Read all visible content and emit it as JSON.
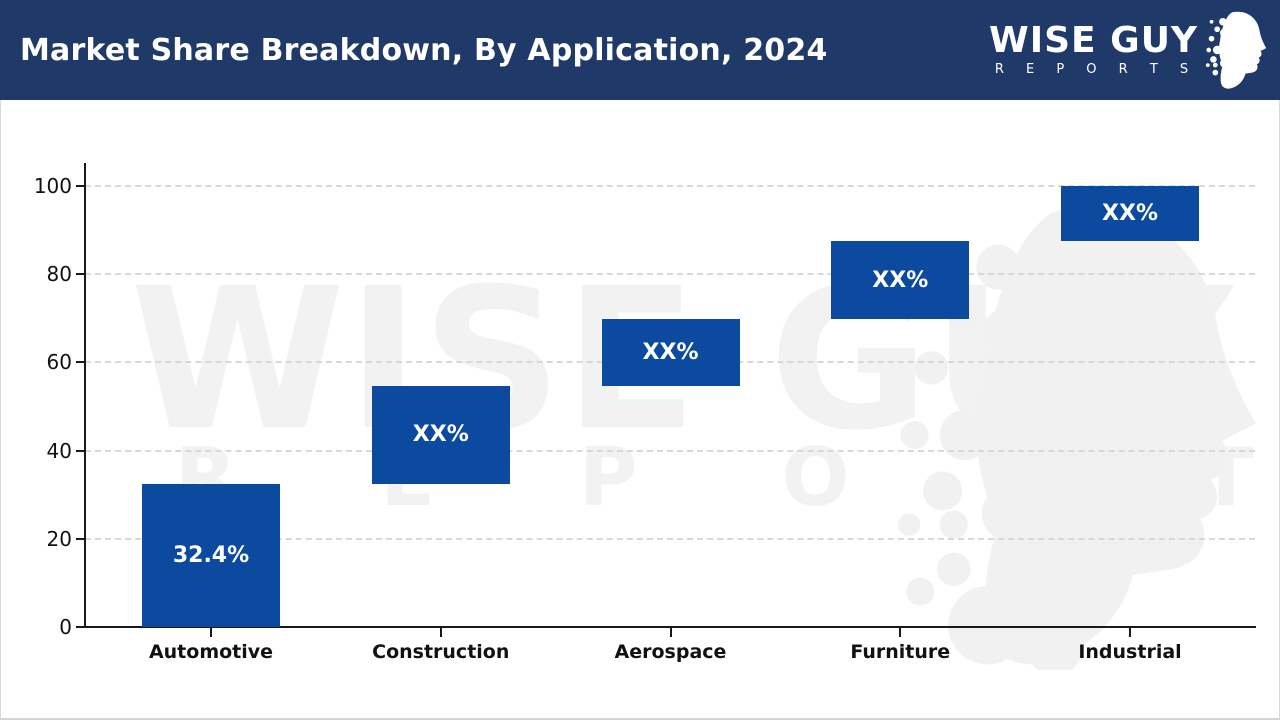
{
  "header": {
    "title": "Market Share Breakdown, By Application, 2024",
    "logo": {
      "name": "WISE GUY",
      "subtitle": "R E P O R T S"
    }
  },
  "watermark": {
    "line1": "WISE GUY",
    "line2": "R E P O R T S"
  },
  "chart_data": {
    "type": "bar",
    "subtype": "waterfall",
    "title": "Market Share Breakdown, By Application, 2024",
    "categories": [
      "Automotive",
      "Construction",
      "Aerospace",
      "Furniture",
      "Industrial"
    ],
    "segments": [
      {
        "category": "Automotive",
        "start": 0,
        "end": 32.4,
        "label": "32.4%"
      },
      {
        "category": "Construction",
        "start": 32.4,
        "end": 54.7,
        "label": "XX%"
      },
      {
        "category": "Aerospace",
        "start": 54.7,
        "end": 69.8,
        "label": "XX%"
      },
      {
        "category": "Furniture",
        "start": 69.8,
        "end": 87.5,
        "label": "XX%"
      },
      {
        "category": "Industrial",
        "start": 87.5,
        "end": 100,
        "label": "XX%"
      }
    ],
    "y_ticks": [
      0,
      20,
      40,
      60,
      80,
      100
    ],
    "ylim": [
      0,
      100
    ],
    "xlabel": "",
    "ylabel": "",
    "legend": "none",
    "grid": "horizontal-dashed",
    "bar_color": "#0b4a9e",
    "bar_label_color": "#ffffff"
  },
  "colors": {
    "header_bg": "#1f3a68",
    "bar": "#0b4a9e",
    "axis": "#1a1a1a",
    "grid": "#d8d8d8",
    "watermark": "#f2f2f2",
    "page_border": "#d9d9d9"
  }
}
